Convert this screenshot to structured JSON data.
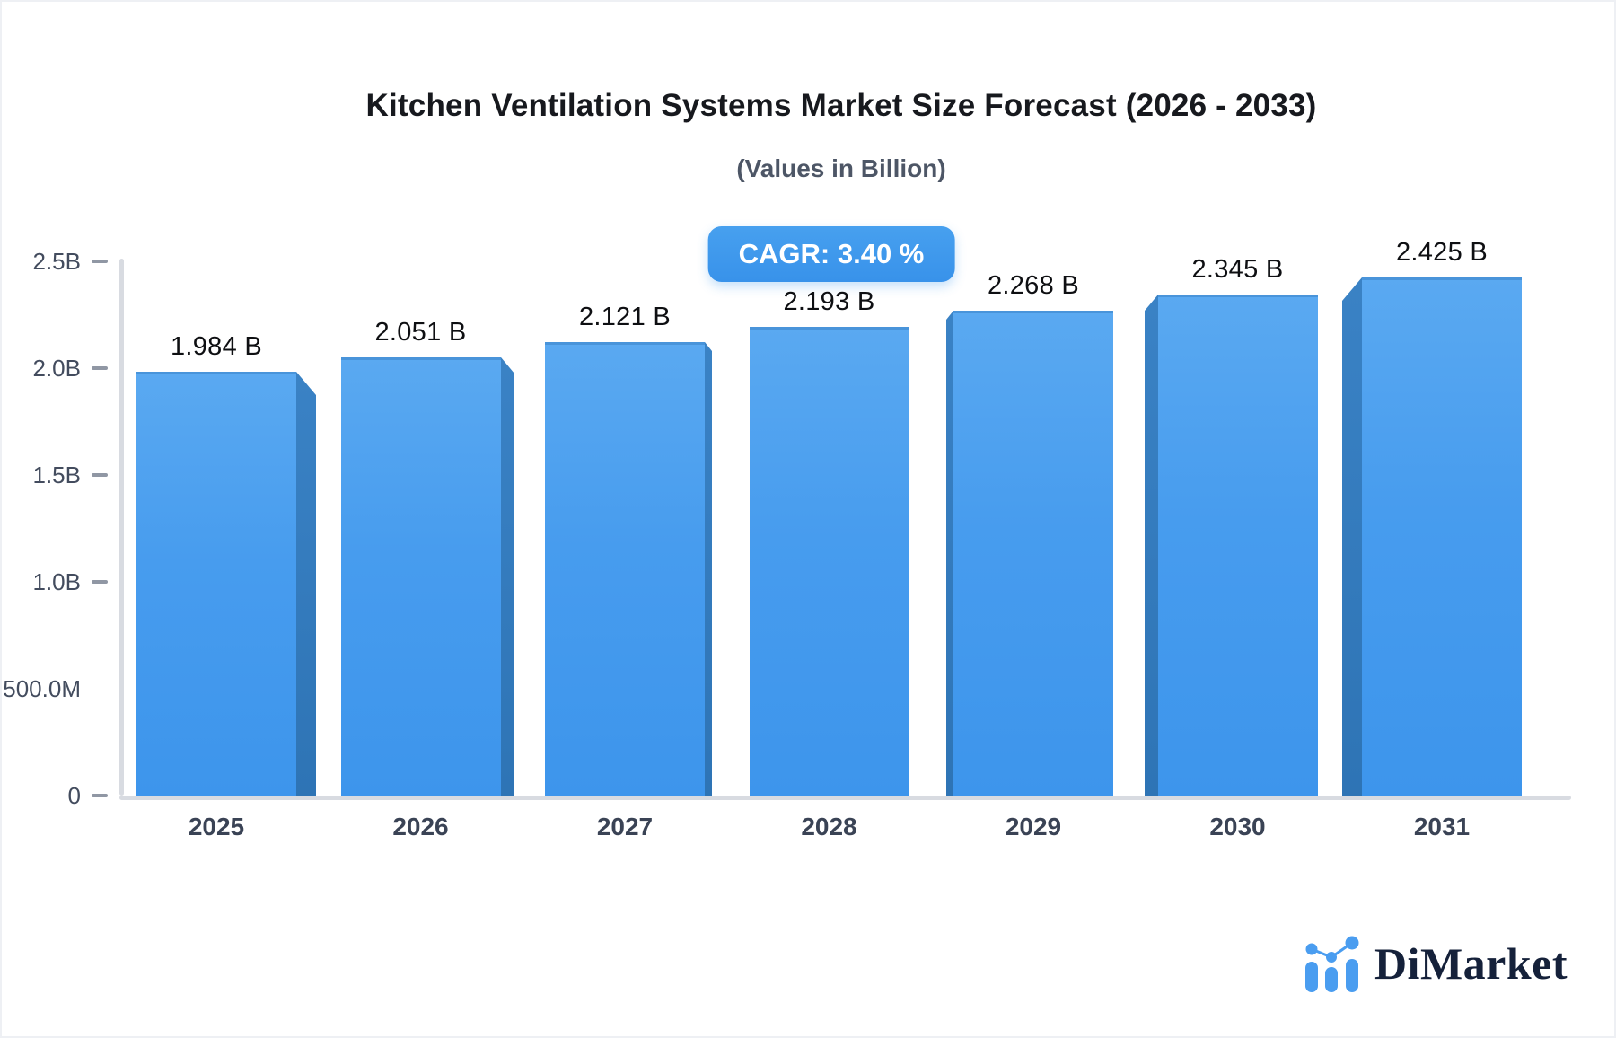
{
  "title": "Kitchen Ventilation Systems Market Size Forecast (2026 - 2033)",
  "subtitle": "(Values in Billion)",
  "badge": {
    "label": "CAGR: 3.40 %"
  },
  "chart_data": {
    "type": "bar",
    "title": "Kitchen Ventilation Systems Market Size Forecast (2026 - 2033)",
    "subtitle": "(Values in Billion)",
    "categories": [
      "2025",
      "2026",
      "2027",
      "2028",
      "2029",
      "2030",
      "2031"
    ],
    "values": [
      1.984,
      2.051,
      2.121,
      2.193,
      2.268,
      2.345,
      2.425
    ],
    "value_labels": [
      "1.984 B",
      "2.051 B",
      "2.121 B",
      "2.193 B",
      "2.268 B",
      "2.345 B",
      "2.425 B"
    ],
    "unit": "Billion",
    "xlabel": "",
    "ylabel": "",
    "ylim": [
      0,
      2.5
    ],
    "y_ticks": [
      {
        "label": "0",
        "value": 0,
        "dash": true
      },
      {
        "label": "500.0M",
        "value": 0.5,
        "dash": false
      },
      {
        "label": "1.0B",
        "value": 1.0,
        "dash": true
      },
      {
        "label": "1.5B",
        "value": 1.5,
        "dash": true
      },
      {
        "label": "2.0B",
        "value": 2.0,
        "dash": true
      },
      {
        "label": "2.5B",
        "value": 2.5,
        "dash": true
      }
    ],
    "grid": false,
    "legend_position": "none",
    "annotation": "CAGR: 3.40 %",
    "bar_face_color_top": "#58a8f0",
    "bar_face_color_bottom": "#3d95ec",
    "bar_side_color": "#2f76b7"
  },
  "logo": {
    "text": "DiMarket",
    "icon": "mini-bar-line-chart-icon",
    "text_color": "#15213a",
    "accent_color": "#4a9df0"
  }
}
